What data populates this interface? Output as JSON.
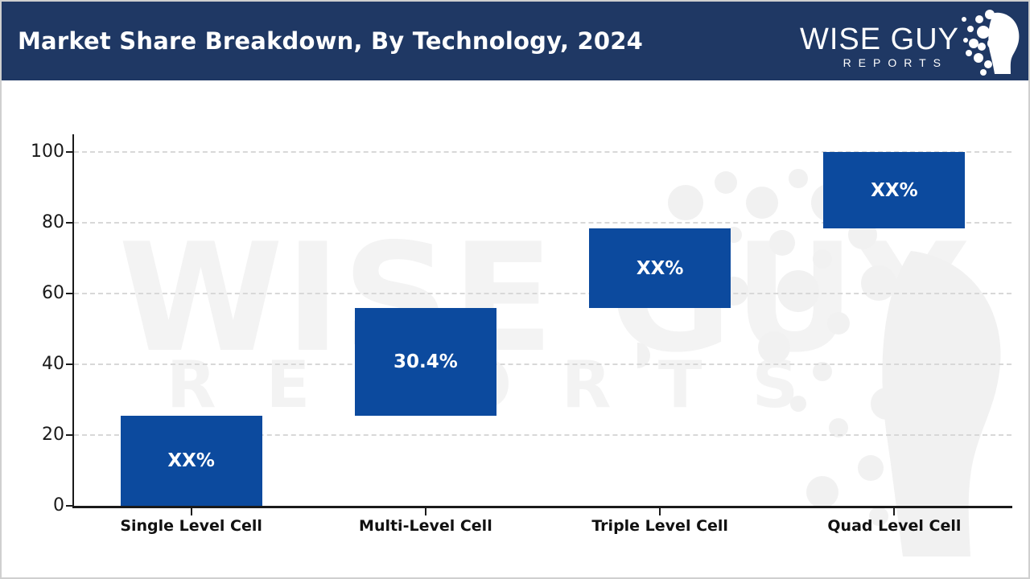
{
  "header": {
    "title": "Market Share Breakdown, By Technology, 2024",
    "logo": {
      "line1": "WISE GUY",
      "line2": "REPORTS"
    }
  },
  "watermark": {
    "line1": "WISE GUY",
    "line2": "REPORTS"
  },
  "colors": {
    "header_bg": "#1f3864",
    "bar": "#0c4a9e",
    "bar_label": "#ffffff",
    "grid": "#d8d8d8",
    "axis": "#1a1a1a",
    "watermark": "#f3f3f3"
  },
  "chart_data": {
    "type": "bar",
    "subtype": "waterfall",
    "title": "Market Share Breakdown, By Technology, 2024",
    "xlabel": "",
    "ylabel": "",
    "categories": [
      "Single Level Cell",
      "Multi-Level Cell",
      "Triple Level Cell",
      "Quad Level Cell"
    ],
    "segments": [
      {
        "category": "Single Level Cell",
        "start": 0,
        "end": 25.5,
        "value": 25.5,
        "value_label": "XX%"
      },
      {
        "category": "Multi-Level Cell",
        "start": 25.5,
        "end": 55.9,
        "value": 30.4,
        "value_label": "30.4%"
      },
      {
        "category": "Triple Level Cell",
        "start": 55.9,
        "end": 78.4,
        "value": 22.5,
        "value_label": "XX%"
      },
      {
        "category": "Quad Level Cell",
        "start": 78.4,
        "end": 100,
        "value": 21.6,
        "value_label": "XX%"
      }
    ],
    "yticks": [
      0,
      20,
      40,
      60,
      80,
      100
    ],
    "ylim": [
      0,
      105
    ],
    "grid": "horizontal-dashed",
    "legend": "none"
  }
}
